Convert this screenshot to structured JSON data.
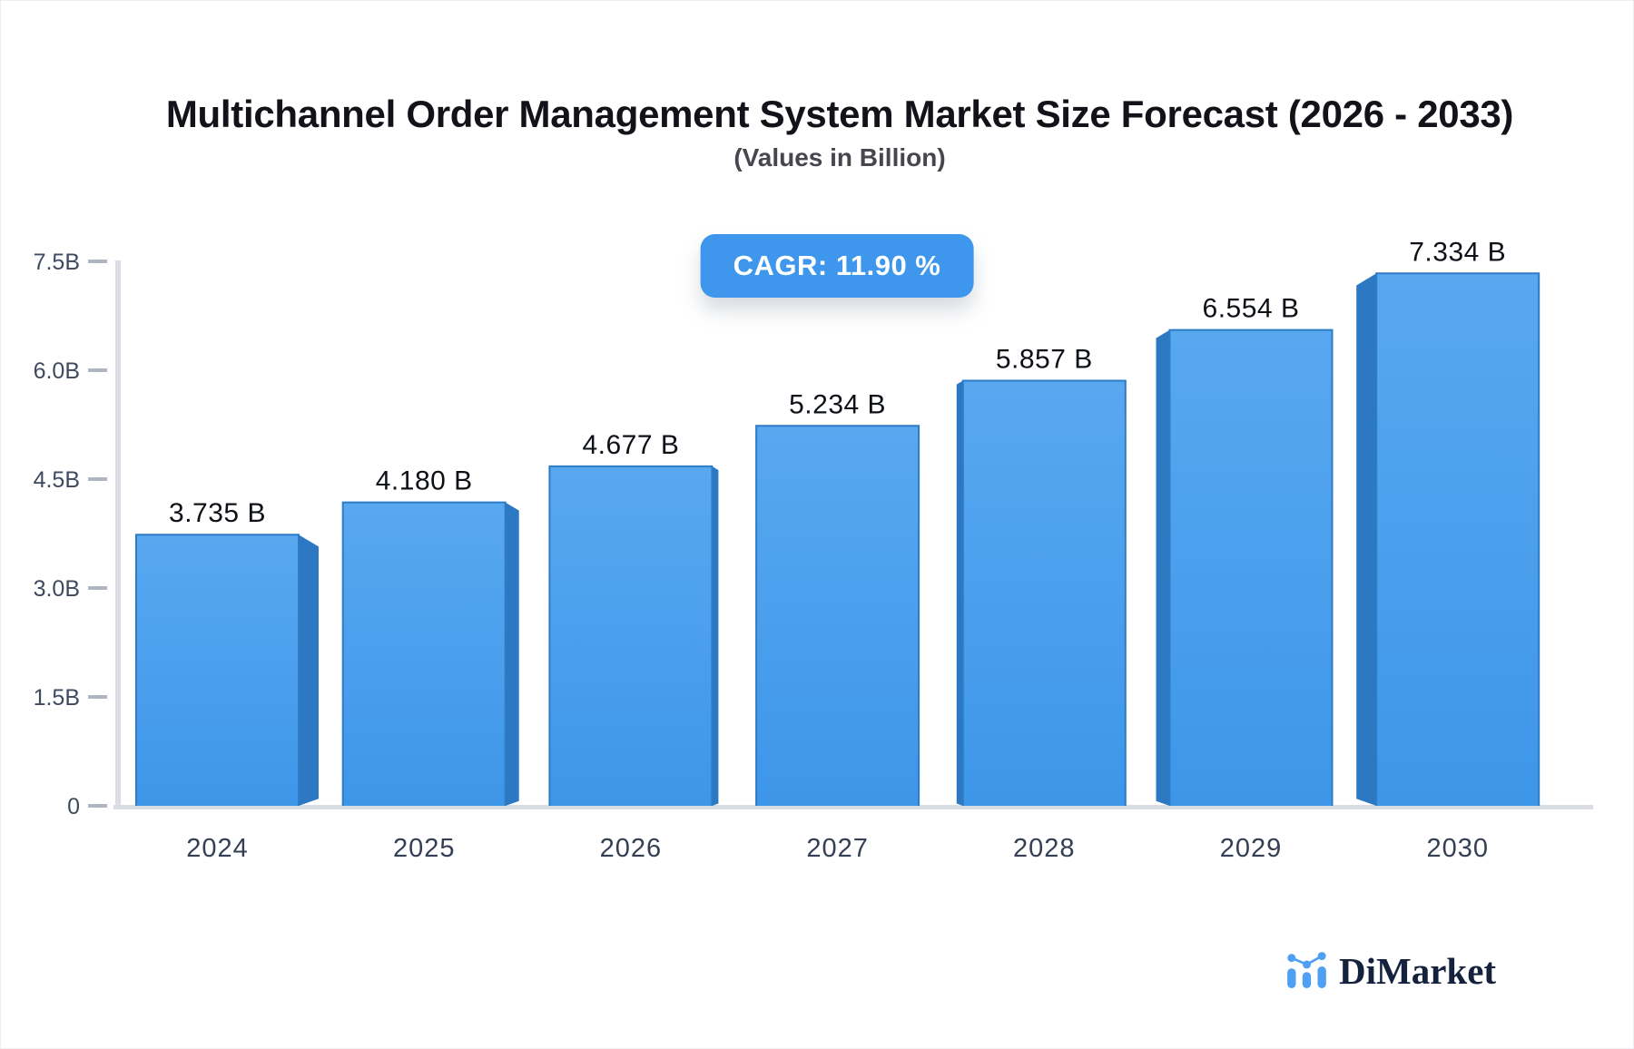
{
  "header": {
    "title": "Multichannel Order Management System Market Size Forecast (2026 - 2033)",
    "subtitle": "(Values in Billion)",
    "cagr_label": "CAGR: 11.90 %"
  },
  "chart_data": {
    "type": "bar",
    "title": "Multichannel Order Management System Market Size Forecast (2026 - 2033)",
    "subtitle": "(Values in Billion)",
    "cagr_text": "CAGR: 11.90 %",
    "categories": [
      "2024",
      "2025",
      "2026",
      "2027",
      "2028",
      "2029",
      "2030"
    ],
    "values": [
      3.735,
      4.18,
      4.677,
      5.234,
      5.857,
      6.554,
      7.334
    ],
    "value_labels": [
      "3.735 B",
      "4.180 B",
      "4.677 B",
      "5.234 B",
      "5.857 B",
      "6.554 B",
      "7.334 B"
    ],
    "xlabel": "",
    "ylabel": "",
    "ylim": [
      0,
      7.5
    ],
    "yticks": [
      {
        "value": 0,
        "label": "0"
      },
      {
        "value": 1.5,
        "label": "1.5B"
      },
      {
        "value": 3.0,
        "label": "3.0B"
      },
      {
        "value": 4.5,
        "label": "4.5B"
      },
      {
        "value": 6.0,
        "label": "6.0B"
      },
      {
        "value": 7.5,
        "label": "7.5B"
      }
    ],
    "grid": false,
    "legend": "none",
    "bar_style": "3d-extruded, vanishing point at center bar",
    "colors": {
      "bar_face_top": "#58A8F0",
      "bar_face_bottom": "#3E96E9",
      "bar_side": "#2D78C2",
      "bar_edge": "#2E7CC6",
      "axis_line": "#DADDE3",
      "tick": "#AEB6C2",
      "axis_label": "#3E4A60",
      "x_label": "#353F54",
      "value_label": "#0D1117",
      "badge_bg": "#3F97ED",
      "badge_text": "#FFFFFF",
      "logo_blue": "#4FA0F2",
      "logo_navy": "#15223D"
    }
  },
  "footer": {
    "brand": "DiMarket"
  }
}
